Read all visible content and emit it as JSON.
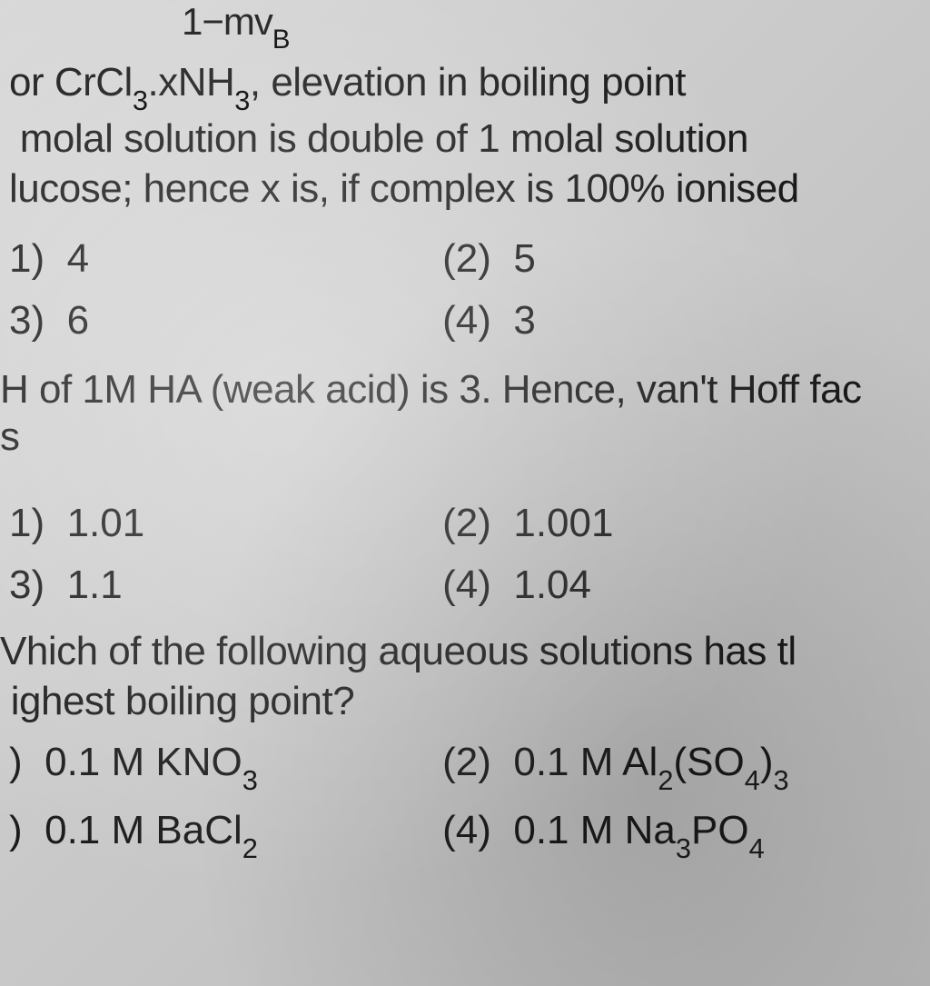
{
  "fragment": "1−mv",
  "fragment_sub": "B",
  "q1": {
    "line1_pre": "or CrCl",
    "line1_sub1": "3",
    "line1_mid": ".xNH",
    "line1_sub2": "3",
    "line1_post": ", elevation in boiling point",
    "line2": "molal solution is double of 1 molal solution",
    "line3": "lucose; hence x is, if complex is 100% ionised",
    "opt1_num": "1)",
    "opt1_val": "4",
    "opt2_num": "(2)",
    "opt2_val": "5",
    "opt3_num": "3)",
    "opt3_val": "6",
    "opt4_num": "(4)",
    "opt4_val": "3"
  },
  "q2": {
    "line1": "H of 1M HA (weak acid) is 3. Hence, van't Hoff fac",
    "line2": "s",
    "opt1_num": "1)",
    "opt1_val": "1.01",
    "opt2_num": "(2)",
    "opt2_val": "1.001",
    "opt3_num": "3)",
    "opt3_val": "1.1",
    "opt4_num": "(4)",
    "opt4_val": "1.04"
  },
  "q3": {
    "line1": "Vhich of the following aqueous solutions has tl",
    "line2": "ighest boiling point?",
    "opt1_num": ")",
    "opt1_pre": "0.1 M KNO",
    "opt1_sub": "3",
    "opt2_num": "(2)",
    "opt2_pre": "0.1 M Al",
    "opt2_sub1": "2",
    "opt2_mid": "(SO",
    "opt2_sub2": "4",
    "opt2_post": ")",
    "opt2_sub3": "3",
    "opt3_num": ")",
    "opt3_pre": "0.1 M BaCl",
    "opt3_sub": "2",
    "opt4_num": "(4)",
    "opt4_pre": "0.1 M Na",
    "opt4_sub1": "3",
    "opt4_mid": "PO",
    "opt4_sub2": "4"
  }
}
